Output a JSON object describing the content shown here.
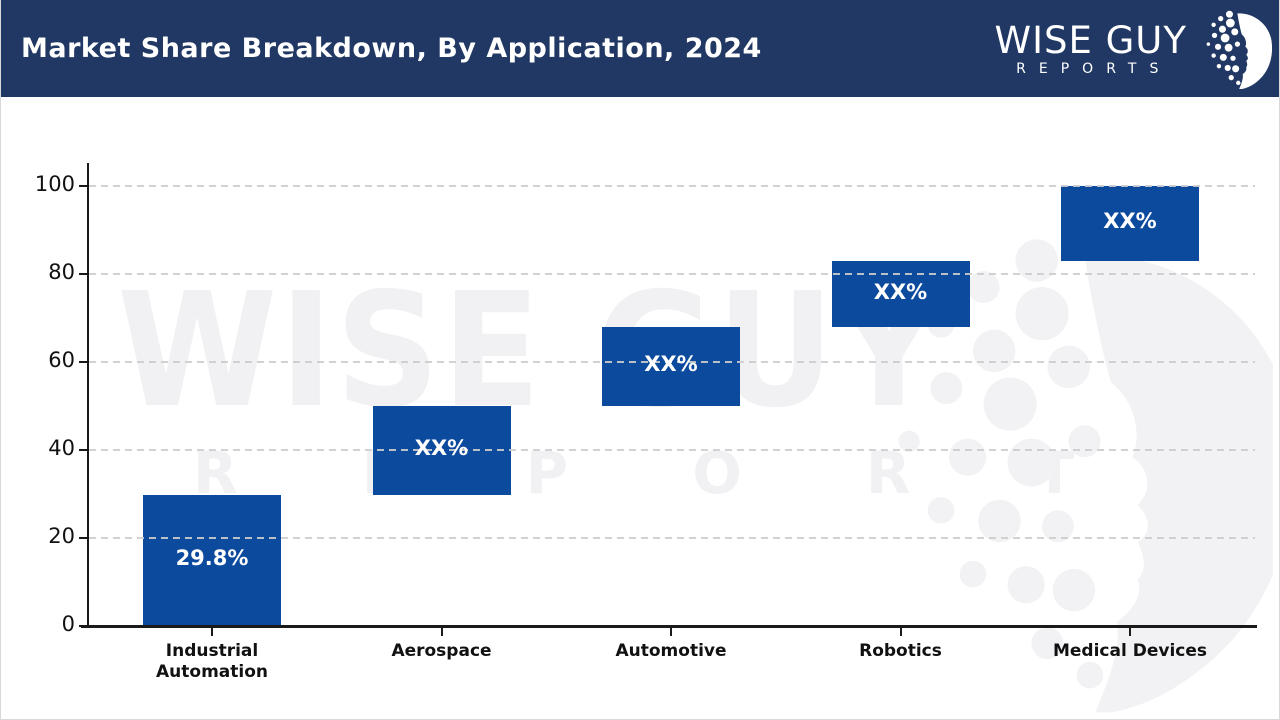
{
  "header": {
    "title": "Market Share Breakdown, By Application, 2024",
    "bg_color": "#203863",
    "logo": {
      "line1": "WISE GUY",
      "line2": "REPORTS"
    }
  },
  "watermark": {
    "line1": "WISE GUY",
    "line2": "R E P O R T S"
  },
  "chart_data": {
    "type": "bar",
    "subtype": "floating-waterfall",
    "title": "Market Share Breakdown, By Application, 2024",
    "categories": [
      "Industrial Automation",
      "Aerospace",
      "Automotive",
      "Robotics",
      "Medical Devices"
    ],
    "segments": [
      {
        "category": "Industrial Automation",
        "start": 0,
        "end": 29.8,
        "label": "29.8%"
      },
      {
        "category": "Aerospace",
        "start": 29.8,
        "end": 50,
        "label": "XX%"
      },
      {
        "category": "Automotive",
        "start": 50,
        "end": 68,
        "label": "XX%"
      },
      {
        "category": "Robotics",
        "start": 68,
        "end": 83,
        "label": "XX%"
      },
      {
        "category": "Medical Devices",
        "start": 83,
        "end": 100,
        "label": "XX%"
      }
    ],
    "xlabel": "",
    "ylabel": "",
    "yticks": [
      0,
      20,
      40,
      60,
      80,
      100
    ],
    "ylim": [
      0,
      105
    ],
    "grid": "horizontal-dashed-over-bars",
    "legend": "none",
    "bar_color": "#0c4a9e",
    "bar_label_color": "#ffffff",
    "axis_color": "#1a1a1a",
    "grid_color": "#d2d2d2"
  }
}
